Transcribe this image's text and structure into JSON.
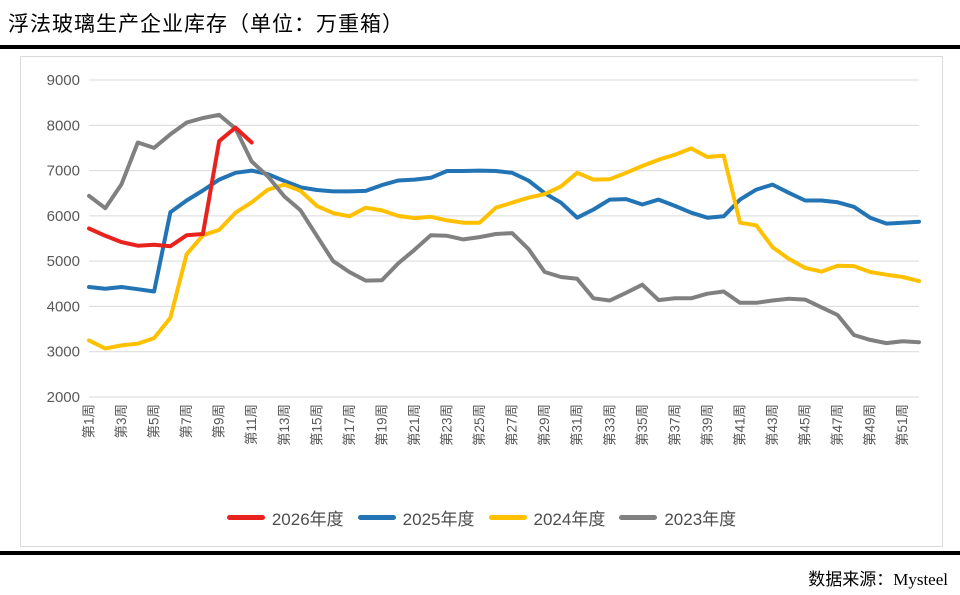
{
  "header": {
    "title": "浮法玻璃生产企业库存（单位：万重箱）"
  },
  "footer": {
    "source": "数据来源：Mysteel"
  },
  "chart_data": {
    "type": "line",
    "title": "浮法玻璃生产企业库存（单位：万重箱）",
    "xlabel": "",
    "ylabel": "",
    "ylim": [
      2000,
      9000
    ],
    "y_ticks": [
      2000,
      3000,
      4000,
      5000,
      6000,
      7000,
      8000,
      9000
    ],
    "grid": true,
    "legend_position": "bottom",
    "x_tick_step": 2,
    "categories": [
      "第1周",
      "第2周",
      "第3周",
      "第4周",
      "第5周",
      "第6周",
      "第7周",
      "第8周",
      "第9周",
      "第10周",
      "第11周",
      "第12周",
      "第13周",
      "第14周",
      "第15周",
      "第16周",
      "第17周",
      "第18周",
      "第19周",
      "第20周",
      "第21周",
      "第22周",
      "第23周",
      "第24周",
      "第25周",
      "第26周",
      "第27周",
      "第28周",
      "第29周",
      "第30周",
      "第31周",
      "第32周",
      "第33周",
      "第34周",
      "第35周",
      "第36周",
      "第37周",
      "第38周",
      "第39周",
      "第40周",
      "第41周",
      "第42周",
      "第43周",
      "第44周",
      "第45周",
      "第46周",
      "第47周",
      "第48周",
      "第49周",
      "第50周",
      "第51周",
      "第52周"
    ],
    "series": [
      {
        "name": "2026年度",
        "color": "#E8231E",
        "values": [
          5720,
          5560,
          5420,
          5340,
          5360,
          5330,
          5570,
          5600,
          7650,
          7950,
          7620
        ]
      },
      {
        "name": "2025年度",
        "color": "#2274B5",
        "values": [
          4430,
          4390,
          4430,
          4380,
          4330,
          6080,
          6340,
          6560,
          6800,
          6950,
          7000,
          6920,
          6770,
          6630,
          6570,
          6540,
          6540,
          6550,
          6680,
          6780,
          6800,
          6840,
          6990,
          6990,
          7000,
          6990,
          6950,
          6780,
          6500,
          6290,
          5960,
          6140,
          6360,
          6370,
          6250,
          6360,
          6220,
          6070,
          5960,
          5990,
          6360,
          6580,
          6690,
          6510,
          6340,
          6340,
          6300,
          6200,
          5960,
          5830,
          5850,
          5870
        ]
      },
      {
        "name": "2024年度",
        "color": "#FFC000",
        "values": [
          3250,
          3070,
          3140,
          3180,
          3300,
          3750,
          5150,
          5570,
          5690,
          6070,
          6300,
          6580,
          6690,
          6550,
          6220,
          6060,
          5990,
          6180,
          6120,
          6000,
          5950,
          5980,
          5900,
          5850,
          5850,
          6180,
          6290,
          6400,
          6480,
          6650,
          6950,
          6800,
          6810,
          6950,
          7100,
          7240,
          7350,
          7490,
          7300,
          7330,
          5850,
          5790,
          5310,
          5050,
          4850,
          4770,
          4900,
          4890,
          4760,
          4700,
          4650,
          4560
        ]
      },
      {
        "name": "2023年度",
        "color": "#808080",
        "values": [
          6440,
          6170,
          6700,
          7620,
          7500,
          7800,
          8060,
          8160,
          8230,
          7930,
          7200,
          6870,
          6430,
          6120,
          5560,
          5000,
          4760,
          4570,
          4580,
          4950,
          5250,
          5570,
          5560,
          5480,
          5530,
          5600,
          5620,
          5270,
          4760,
          4650,
          4610,
          4180,
          4130,
          4300,
          4480,
          4140,
          4180,
          4180,
          4280,
          4330,
          4080,
          4080,
          4130,
          4170,
          4150,
          3980,
          3810,
          3370,
          3260,
          3190,
          3230,
          3210
        ]
      }
    ]
  }
}
